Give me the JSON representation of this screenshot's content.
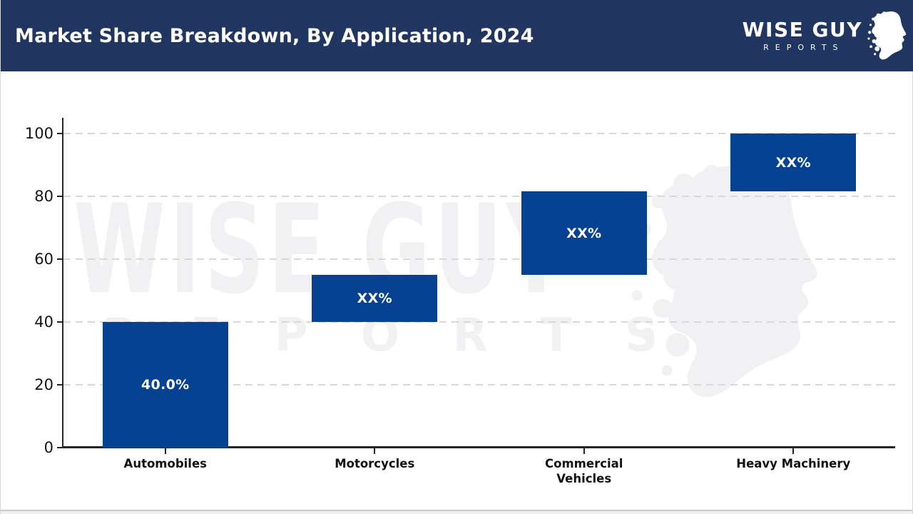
{
  "header": {
    "title": "Market Share Breakdown, By Application, 2024",
    "logo": {
      "wordmark": "WISE GUY",
      "subtext": "REPORTS"
    }
  },
  "watermark": {
    "line1": "WISE GUY",
    "line2": "R E P O R T S ."
  },
  "chart_data": {
    "type": "bar",
    "subtype": "floating-waterfall",
    "title": "Market Share Breakdown, By Application, 2024",
    "categories": [
      "Automobiles",
      "Motorcycles",
      "Commercial Vehicles",
      "Heavy Machinery"
    ],
    "segments": [
      {
        "category": "Automobiles",
        "start": 0,
        "end": 40,
        "label": "40.0%"
      },
      {
        "category": "Motorcycles",
        "start": 40,
        "end": 55,
        "label": "XX%"
      },
      {
        "category": "Commercial Vehicles",
        "start": 55,
        "end": 81.5,
        "label": "XX%"
      },
      {
        "category": "Heavy Machinery",
        "start": 81.5,
        "end": 100,
        "label": "XX%"
      }
    ],
    "xlabel": "",
    "ylabel": "",
    "ylim": [
      0,
      100
    ],
    "y_ticks": [
      0,
      20,
      40,
      60,
      80,
      100
    ],
    "grid": "horizontal-dashed",
    "legend": "none",
    "bar_color": "#064291"
  },
  "colors": {
    "header_bg": "#203560",
    "bar": "#064291",
    "axis": "#262626",
    "grid": "#d9d9d9",
    "label_text": "#111111",
    "watermark": "#f1f1f4",
    "logo_text": "#ffffff"
  }
}
